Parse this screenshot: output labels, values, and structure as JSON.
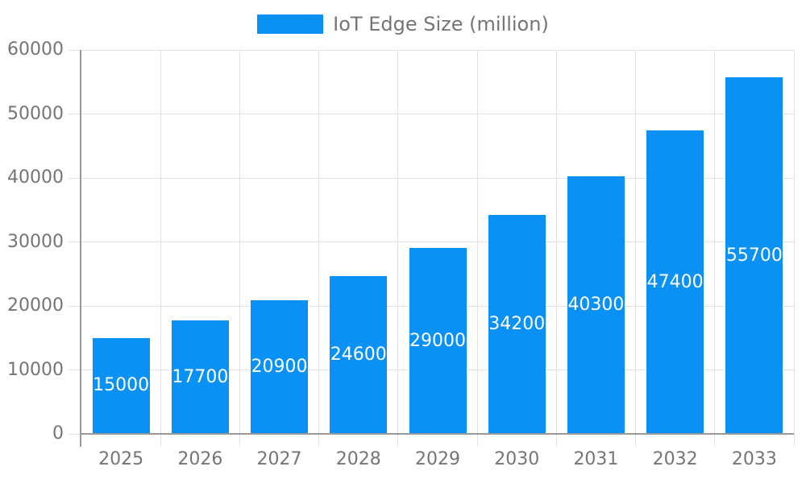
{
  "chart_data": {
    "type": "bar",
    "title": "",
    "legend_label": "IoT Edge Size (million)",
    "legend_position": "top-center",
    "categories": [
      "2025",
      "2026",
      "2027",
      "2028",
      "2029",
      "2030",
      "2031",
      "2032",
      "2033"
    ],
    "values": [
      15000,
      17700,
      20900,
      24600,
      29000,
      34200,
      40300,
      47400,
      55700
    ],
    "value_labels": [
      "15000",
      "17700",
      "20900",
      "24600",
      "29000",
      "34200",
      "40300",
      "47400",
      "55700"
    ],
    "bar_label_position": "center-inside",
    "xlabel": "",
    "ylabel": "",
    "ylim": [
      0,
      60000
    ],
    "y_tick_step": 10000,
    "y_ticks": [
      "0",
      "10000",
      "20000",
      "30000",
      "40000",
      "50000",
      "60000"
    ],
    "grid": true,
    "colors": {
      "bar": "#0991F5",
      "bar_label": "#FFFFFF",
      "axis_text": "#757575",
      "legend_text": "#757575",
      "axis_line": "#999999",
      "gridline": "#E2E2E2",
      "background": "#FFFFFF"
    }
  }
}
